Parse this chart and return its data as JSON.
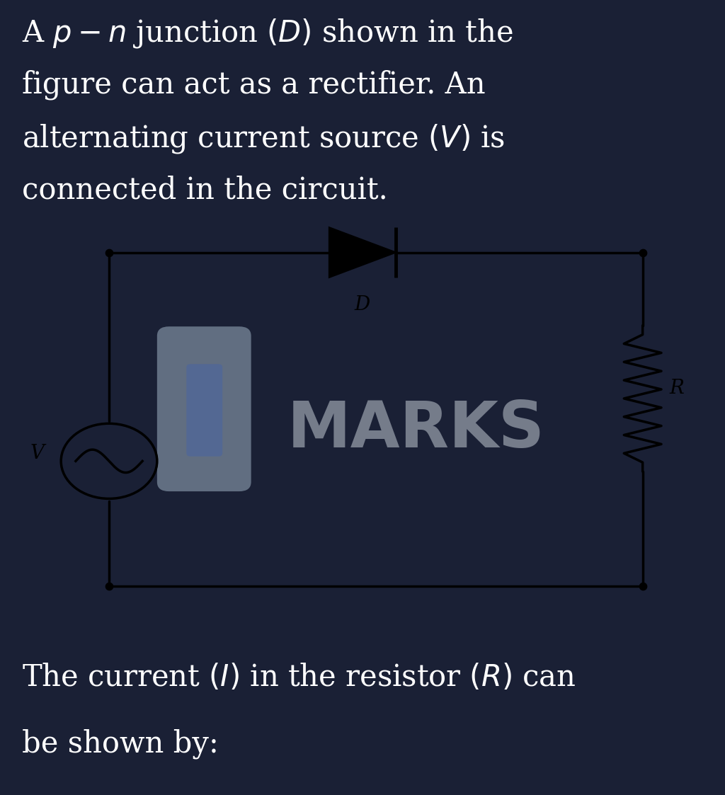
{
  "bg_color": "#1a2035",
  "text_color": "#ffffff",
  "circuit_bg": "#ffffff",
  "circuit_line_color": "#000000",
  "title_lines": [
    "A $p-n$ junction $(D)$ shown in the",
    "figure can act as a rectifier. An",
    "alternating current source $(V)$ is",
    "connected in the circuit."
  ],
  "bottom_lines": [
    "The current $(I)$ in the resistor $(R)$ can",
    "be shown by:"
  ],
  "marks_text": "MARKS",
  "marks_color": "#d0d8e0",
  "logo_outer_color": "#b8cfe0",
  "logo_inner_color": "#4060b0",
  "label_D": "D",
  "label_R": "R",
  "label_V": "V",
  "font_size_title": 30,
  "font_size_bottom": 30,
  "font_size_circuit_labels": 20,
  "font_size_marks": 65
}
